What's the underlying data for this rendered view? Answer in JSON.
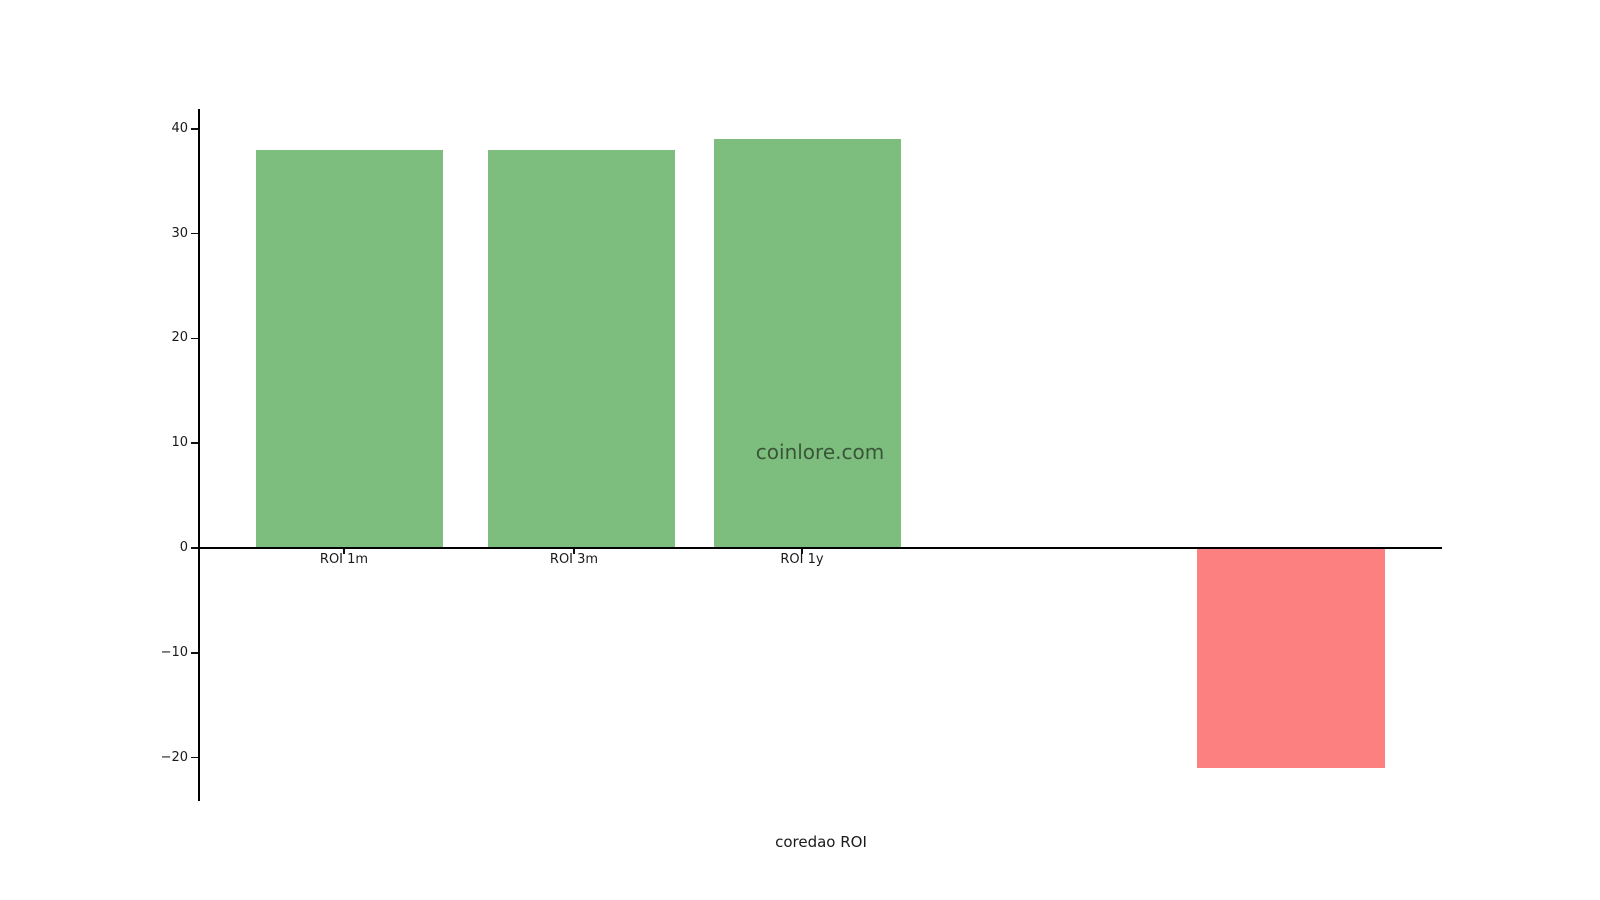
{
  "chart_data": {
    "type": "bar",
    "categories": [
      "ROI 1m",
      "ROI 3m",
      "ROI 1y",
      ""
    ],
    "values": [
      38,
      38,
      39,
      -21
    ],
    "title": "",
    "xlabel": "coredao ROI",
    "ylabel": "",
    "yticks": [
      40,
      30,
      20,
      10,
      0,
      -10,
      -20
    ],
    "ylim": [
      -24,
      42
    ],
    "grid": false,
    "legend": false,
    "watermark": "coinlore.com",
    "colors": {
      "positive_bar": "#7dbd7d",
      "negative_bar": "#fd8080",
      "axis": "#000000",
      "tick_text": "#1a1a1a"
    }
  }
}
